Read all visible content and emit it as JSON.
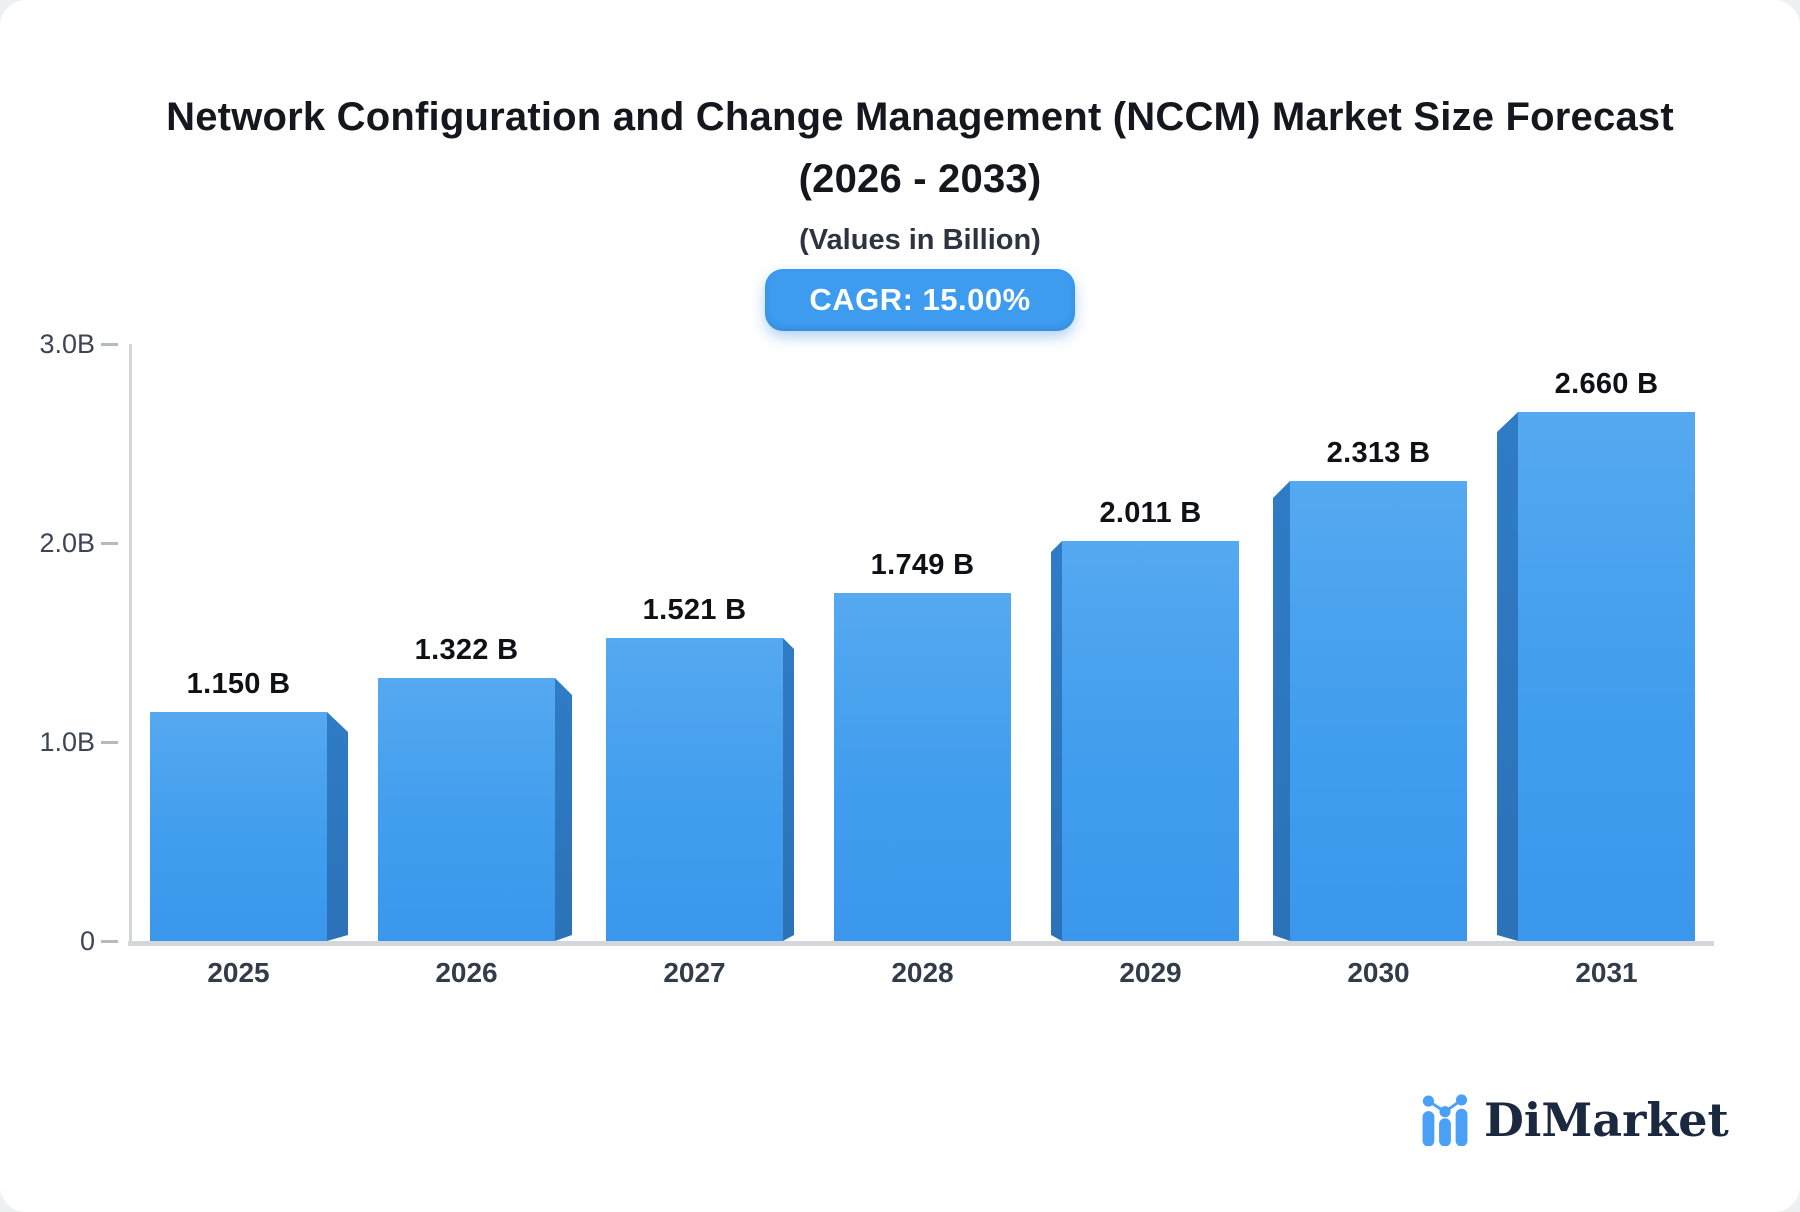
{
  "header": {
    "title_line1": "Network Configuration and Change Management (NCCM) Market Size Forecast",
    "title_line2": "(2026 - 2033)",
    "subtitle": "(Values in Billion)",
    "badge_label": "CAGR: 15.00%"
  },
  "chart_data": {
    "type": "bar",
    "title": "Network Configuration and Change Management (NCCM) Market Size Forecast (2026 - 2033)",
    "subtitle": "(Values in Billion)",
    "unit": "Billion",
    "cagr": "15.00%",
    "categories": [
      "2025",
      "2026",
      "2027",
      "2028",
      "2029",
      "2030",
      "2031"
    ],
    "values": [
      1.15,
      1.322,
      1.521,
      1.749,
      2.011,
      2.313,
      2.66
    ],
    "value_labels": [
      "1.150 B",
      "1.322 B",
      "1.521 B",
      "1.749 B",
      "2.011 B",
      "2.313 B",
      "2.660 B"
    ],
    "yticks": [
      {
        "label": "0",
        "value": 0
      },
      {
        "label": "1.0B",
        "value": 1
      },
      {
        "label": "2.0B",
        "value": 2
      },
      {
        "label": "3.0B",
        "value": 3
      }
    ],
    "ylim": [
      0,
      3
    ],
    "grid": false,
    "legend": false,
    "bar_color": "#3f9def",
    "bar_side_color": "#2e78bf",
    "axis_color": "#d3d7dc",
    "badge_color": "#3d9bf0"
  },
  "logo": {
    "text": "DiMarket",
    "icon": "bar-chart-logo-icon",
    "icon_color": "#4aa0f6"
  }
}
